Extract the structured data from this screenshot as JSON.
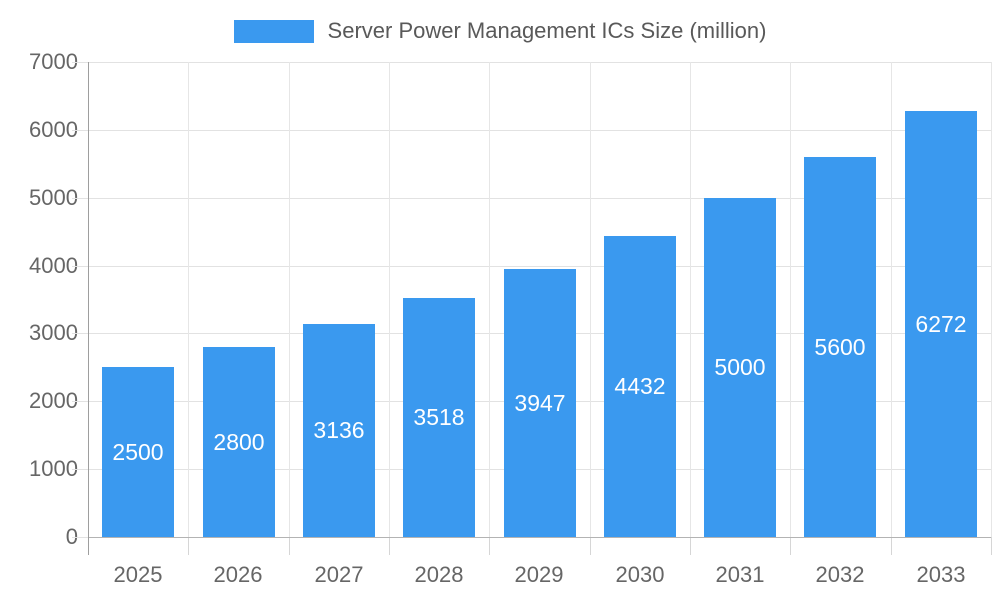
{
  "legend": {
    "label": "Server Power Management ICs Size (million)"
  },
  "colors": {
    "bar": "#3A99EF",
    "legend_swatch": "#3A99EF",
    "bar_value_text": "#FFFFFF",
    "axis_text": "#666666",
    "legend_text": "#595959",
    "gridline": "#E2E2E2",
    "axis_line": "#9E9E9E",
    "zero_line": "#B3B3B3",
    "bottom_tick": "#D6D6D6"
  },
  "chart_data": {
    "type": "bar",
    "title": "Server Power Management ICs Size (million)",
    "categories": [
      "2025",
      "2026",
      "2027",
      "2028",
      "2029",
      "2030",
      "2031",
      "2032",
      "2033"
    ],
    "values": [
      2500,
      2800,
      3136,
      3518,
      3947,
      4432,
      5000,
      5600,
      6272
    ],
    "bar_labels": [
      "2500",
      "2800",
      "3136",
      "3518",
      "3947",
      "4432",
      "5000",
      "5600",
      "6272"
    ],
    "series": [
      {
        "name": "Server Power Management ICs Size (million)",
        "values": [
          2500,
          2800,
          3136,
          3518,
          3947,
          4432,
          5000,
          5600,
          6272
        ]
      }
    ],
    "xlabel": "",
    "ylabel": "",
    "ylim": [
      0,
      7000
    ],
    "yticks": [
      0,
      1000,
      2000,
      3000,
      4000,
      5000,
      6000,
      7000
    ],
    "grid": true,
    "legend_position": "top-center",
    "value_label_position": "inside-middle"
  }
}
